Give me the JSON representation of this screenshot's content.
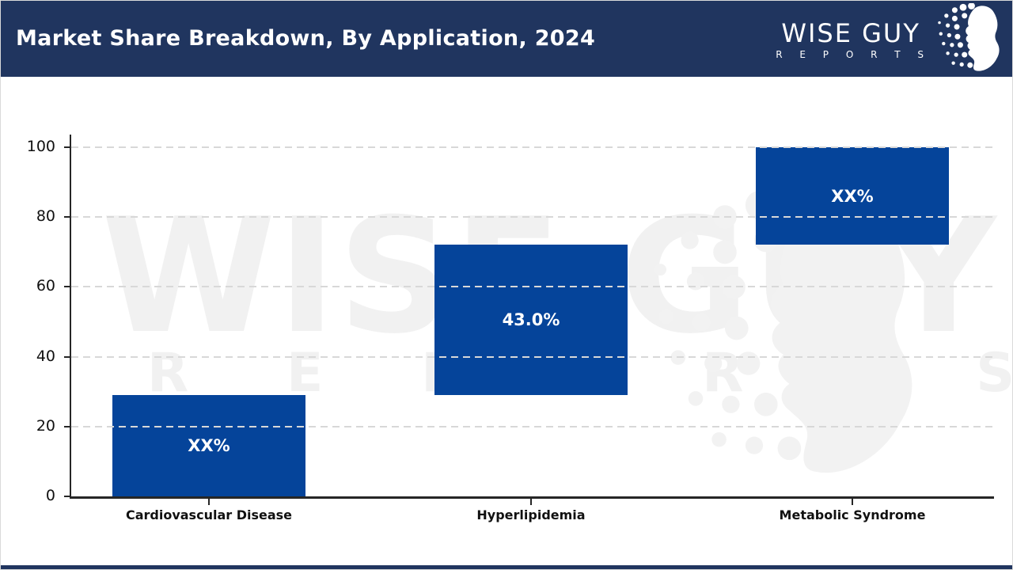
{
  "header": {
    "title": "Market Share Breakdown, By Application, 2024",
    "logo": {
      "name": "WISE GUY",
      "sub": "R E P O R T S"
    }
  },
  "watermark": {
    "big": "WISE GUY",
    "sub": "R E P O R T S"
  },
  "chart_data": {
    "type": "bar",
    "variant": "stacked-waterfall-segments",
    "title": "Market Share Breakdown, By Application, 2024",
    "categories": [
      "Cardiovascular Disease",
      "Hyperlipidemia",
      "Metabolic Syndrome"
    ],
    "segments": [
      {
        "category": "Cardiovascular Disease",
        "start": 0,
        "end": 29,
        "label": "XX%"
      },
      {
        "category": "Hyperlipidemia",
        "start": 29,
        "end": 72,
        "label": "43.0%"
      },
      {
        "category": "Metabolic Syndrome",
        "start": 72,
        "end": 100,
        "label": "XX%"
      }
    ],
    "y_ticks": [
      0,
      20,
      40,
      60,
      80,
      100
    ],
    "ylim": [
      0,
      100
    ],
    "xlabel": "",
    "ylabel": "",
    "grid": "horizontal-dashed",
    "legend": "none",
    "bar_color": "#05449a"
  },
  "colors": {
    "header_bg": "#20355f",
    "footer_bg": "#20355f",
    "bar": "#05449a",
    "gridline": "#d8d8d8",
    "axis": "#262626",
    "bar_label_text": "#ffffff",
    "tick_text": "#111111",
    "watermark": "#f1f1f1"
  }
}
